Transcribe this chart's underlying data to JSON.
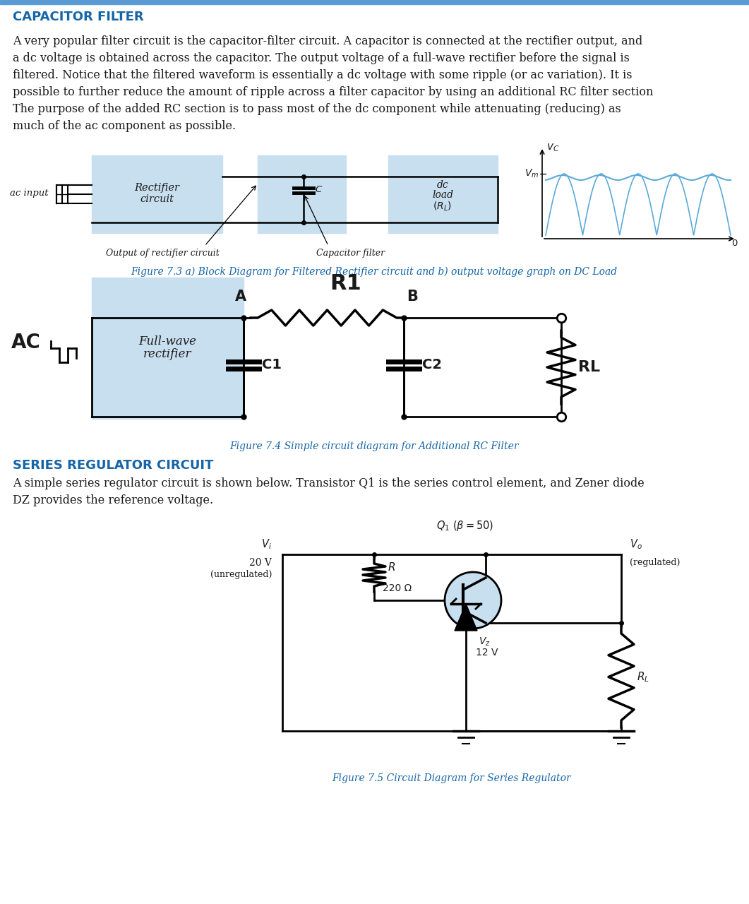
{
  "title": "CAPACITOR FILTER",
  "title_color": "#1565a8",
  "border_top_color": "#5b9bd5",
  "light_blue": "#c8dff0",
  "bg_color": "#ffffff",
  "text_color": "#1a1a1a",
  "blue_text": "#1565a8",
  "body_lines": [
    "A very popular filter circuit is the capacitor-filter circuit. A capacitor is connected at the rectifier output, and",
    "a dc voltage is obtained across the capacitor. The output voltage of a full-wave rectifier before the signal is",
    "filtered. Notice that the filtered waveform is essentially a dc voltage with some ripple (or ac variation). It is",
    "possible to further reduce the amount of ripple across a filter capacitor by using an additional RC filter section",
    "The purpose of the added RC section is to pass most of the dc component while attenuating (reducing) as",
    "much of the ac component as possible."
  ],
  "fig3_caption": "Figure 7.3 a) Block Diagram for Filtered Rectifier circuit and b) output voltage graph on DC Load",
  "fig4_caption": "Figure 7.4 Simple circuit diagram for Additional RC Filter",
  "series_heading": "SERIES REGULATOR CIRCUIT",
  "series_lines": [
    "A simple series regulator circuit is shown below. Transistor Q1 is the series control element, and Zener diode",
    "DZ provides the reference voltage."
  ],
  "fig5_caption": "Figure 7.5 Circuit Diagram for Series Regulator"
}
